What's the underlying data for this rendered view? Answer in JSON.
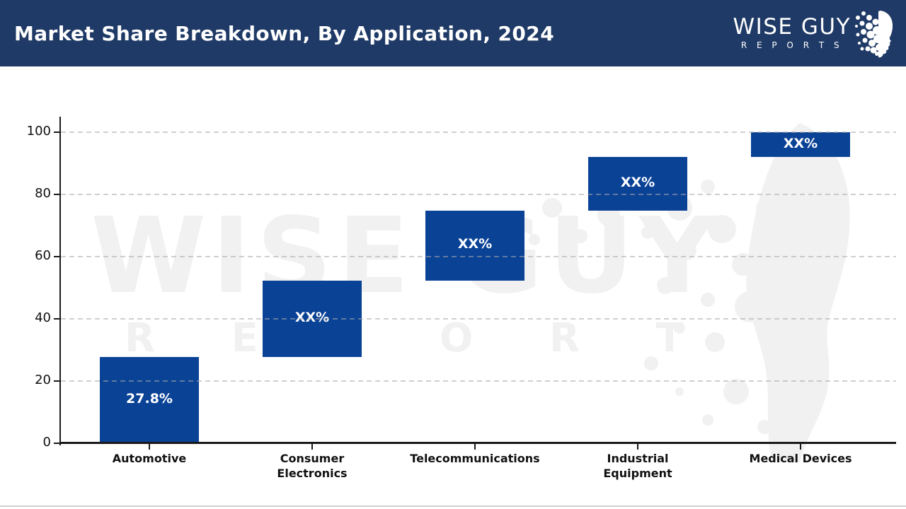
{
  "header": {
    "title": "Market Share Breakdown, By Application, 2024",
    "logo": {
      "wordmark": "WISE GUY",
      "tagline": "R E P O R T S"
    }
  },
  "watermark": {
    "wordmark": "WISE GUY",
    "tagline": "R E P O R T S"
  },
  "chart_data": {
    "type": "bar",
    "variant": "waterfall",
    "title": "Market Share Breakdown, By Application, 2024",
    "categories": [
      "Automotive",
      "Consumer Electronics",
      "Telecommunications",
      "Industrial Equipment",
      "Medical Devices"
    ],
    "category_lines": [
      [
        "Automotive"
      ],
      [
        "Consumer",
        "Electronics"
      ],
      [
        "Telecommunications"
      ],
      [
        "Industrial",
        "Equipment"
      ],
      [
        "Medical Devices"
      ]
    ],
    "segments": [
      {
        "category": "Automotive",
        "start": 0,
        "end": 27.8,
        "label": "27.8%"
      },
      {
        "category": "Consumer Electronics",
        "start": 27.8,
        "end": 52.3,
        "label": "XX%"
      },
      {
        "category": "Telecommunications",
        "start": 52.3,
        "end": 74.8,
        "label": "XX%"
      },
      {
        "category": "Industrial Equipment",
        "start": 74.8,
        "end": 92.0,
        "label": "XX%"
      },
      {
        "category": "Medical Devices",
        "start": 92.0,
        "end": 100.0,
        "label": "XX%"
      }
    ],
    "yticks": [
      0,
      20,
      40,
      60,
      80,
      100
    ],
    "ylim": [
      0,
      105
    ],
    "xlabel": "",
    "ylabel": "",
    "legend": "none",
    "grid": {
      "horizontal": true,
      "style": "dashed"
    },
    "bar_color": "#0a4296",
    "bar_label_color": "#ffffff",
    "header_color": "#1f3a66"
  }
}
